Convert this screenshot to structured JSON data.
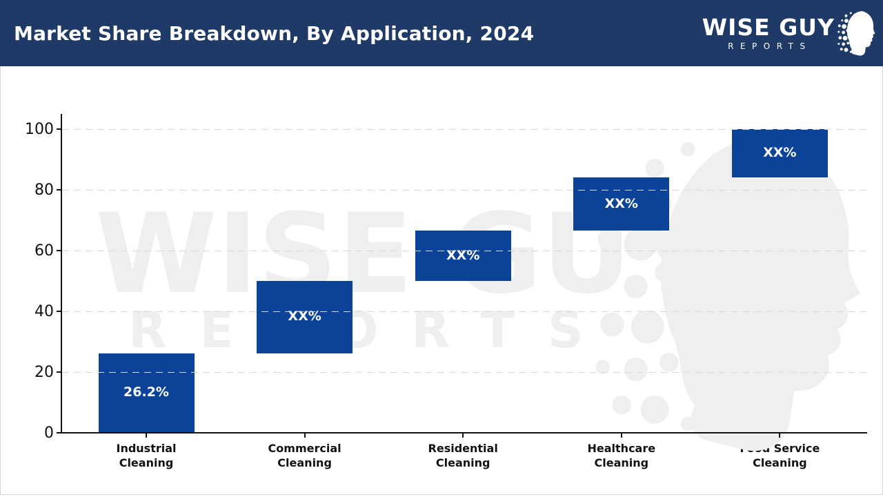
{
  "header": {
    "title": "Market Share Breakdown, By Application, 2024",
    "brand": {
      "name": "WISE GUY",
      "sub": "REPORTS",
      "head_icon": "head-profile-dots-icon"
    }
  },
  "watermark": {
    "big": "WISE GUY",
    "sub": "REPORTS"
  },
  "chart_data": {
    "type": "bar",
    "variant": "waterfall",
    "title": "Market Share Breakdown, By Application, 2024",
    "categories": [
      "Industrial Cleaning",
      "Commercial Cleaning",
      "Residential Cleaning",
      "Healthcare Cleaning",
      "Food Service Cleaning"
    ],
    "category_lines": [
      [
        "Industrial",
        "Cleaning"
      ],
      [
        "Commercial",
        "Cleaning"
      ],
      [
        "Residential",
        "Cleaning"
      ],
      [
        "Healthcare",
        "Cleaning"
      ],
      [
        "Food Service",
        "Cleaning"
      ]
    ],
    "segments": [
      {
        "category": "Industrial Cleaning",
        "start": 0,
        "end": 26.2,
        "label": "26.2%"
      },
      {
        "category": "Commercial Cleaning",
        "start": 26.2,
        "end": 50,
        "label": "XX%"
      },
      {
        "category": "Residential Cleaning",
        "start": 50,
        "end": 66.5,
        "label": "XX%"
      },
      {
        "category": "Healthcare Cleaning",
        "start": 66.5,
        "end": 84,
        "label": "XX%"
      },
      {
        "category": "Food Service Cleaning",
        "start": 84,
        "end": 100,
        "label": "XX%"
      }
    ],
    "y_ticks": [
      0,
      20,
      40,
      60,
      80,
      100
    ],
    "ylim": [
      0,
      105
    ],
    "xlabel": "",
    "ylabel": "",
    "grid": "horizontal-dashed",
    "legend": "none",
    "bar_color": "#0b4398",
    "bar_label_color": "#ffffff"
  },
  "colors": {
    "header_bg": "#1f3a67",
    "bar": "#0b4398",
    "grid": "#d9d9d9",
    "axis": "#111111",
    "watermark": "#efefef",
    "frame_border": "#d6d6d6"
  }
}
